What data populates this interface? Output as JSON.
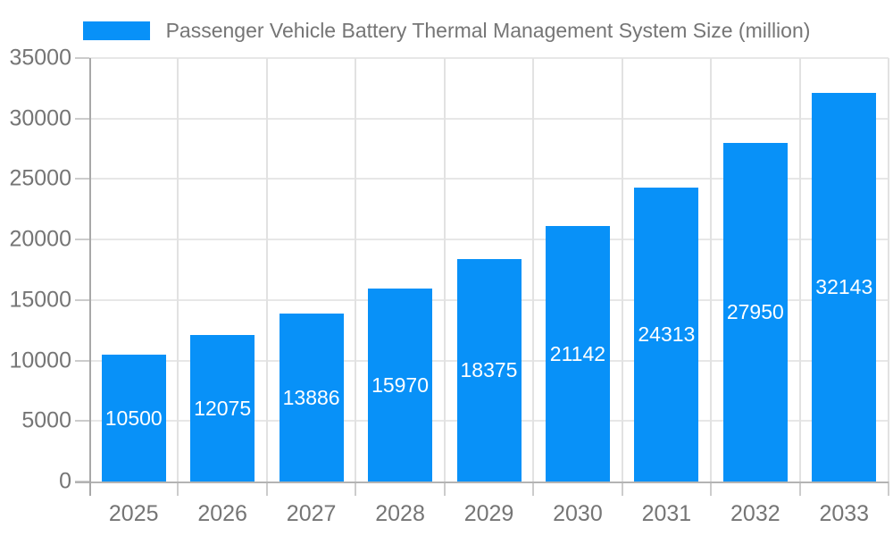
{
  "chart_data": {
    "type": "bar",
    "title": "Passenger Vehicle Battery Thermal Management System Size (million)",
    "categories": [
      "2025",
      "2026",
      "2027",
      "2028",
      "2029",
      "2030",
      "2031",
      "2032",
      "2033"
    ],
    "values": [
      10500,
      12075,
      13886,
      15970,
      18375,
      21142,
      24313,
      27950,
      32143
    ],
    "xlabel": "",
    "ylabel": "",
    "ylim": [
      0,
      35000
    ],
    "yticks": [
      0,
      5000,
      10000,
      15000,
      20000,
      25000,
      30000,
      35000
    ],
    "grid": "on",
    "legend_position": "top-center",
    "value_labels": "inside-center-white",
    "bar_color": "#0891f8",
    "axis_text_color": "#757575",
    "value_label_color": "#ffffff"
  }
}
